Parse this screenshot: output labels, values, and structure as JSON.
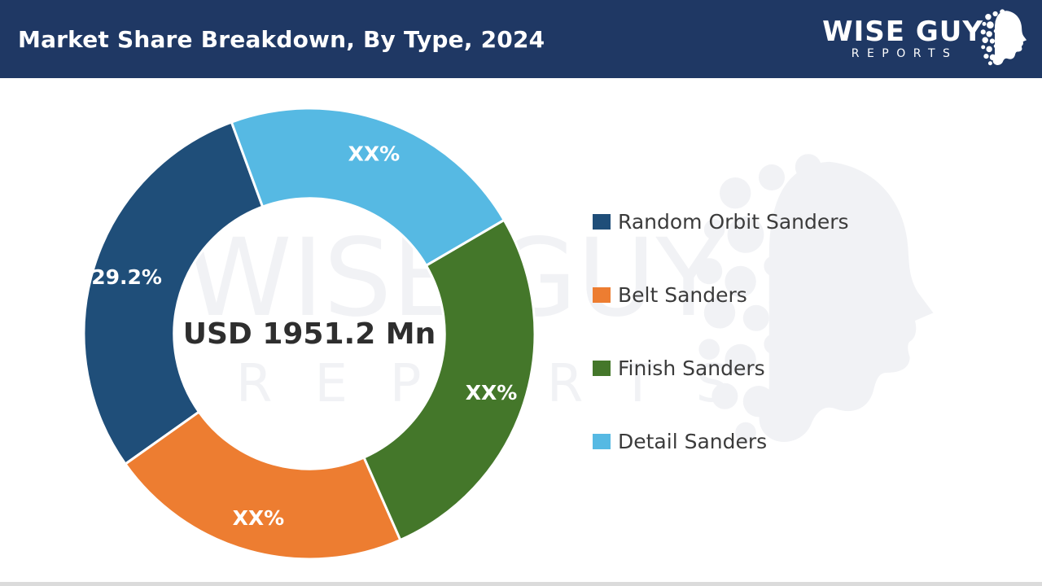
{
  "header": {
    "title": "Market Share Breakdown, By Type, 2024",
    "logo": {
      "name_line": "WISE GUY",
      "sub_line": "REPORTS"
    }
  },
  "watermark": {
    "name_line": "WISE GUY",
    "sub_line": "REPORTS"
  },
  "chart_data": {
    "type": "pie",
    "subtype": "donut",
    "title": "Market Share Breakdown, By Type, 2024",
    "center_label": "USD 1951.2 Mn",
    "categories": [
      "Random Orbit Sanders",
      "Belt Sanders",
      "Finish Sanders",
      "Detail Sanders"
    ],
    "values": [
      29.2,
      21.8,
      26.8,
      22.2
    ],
    "slice_labels": [
      "29.2%",
      "XX%",
      "XX%",
      "XX%"
    ],
    "colors": [
      "#1f4e79",
      "#ed7d31",
      "#44772a",
      "#56b9e3"
    ],
    "start_angle_deg": 110.2,
    "direction": "counterclockwise",
    "inner_radius_ratio": 0.6,
    "legend_position": "right"
  },
  "theme": {
    "header_bg": "#1f3864",
    "page_bg": "#ffffff",
    "center_label_color": "#2e2e2e",
    "legend_text_color": "#3b3b3b",
    "watermark_color": "#f1f2f5",
    "bottom_bar": "#dbdbdb"
  }
}
